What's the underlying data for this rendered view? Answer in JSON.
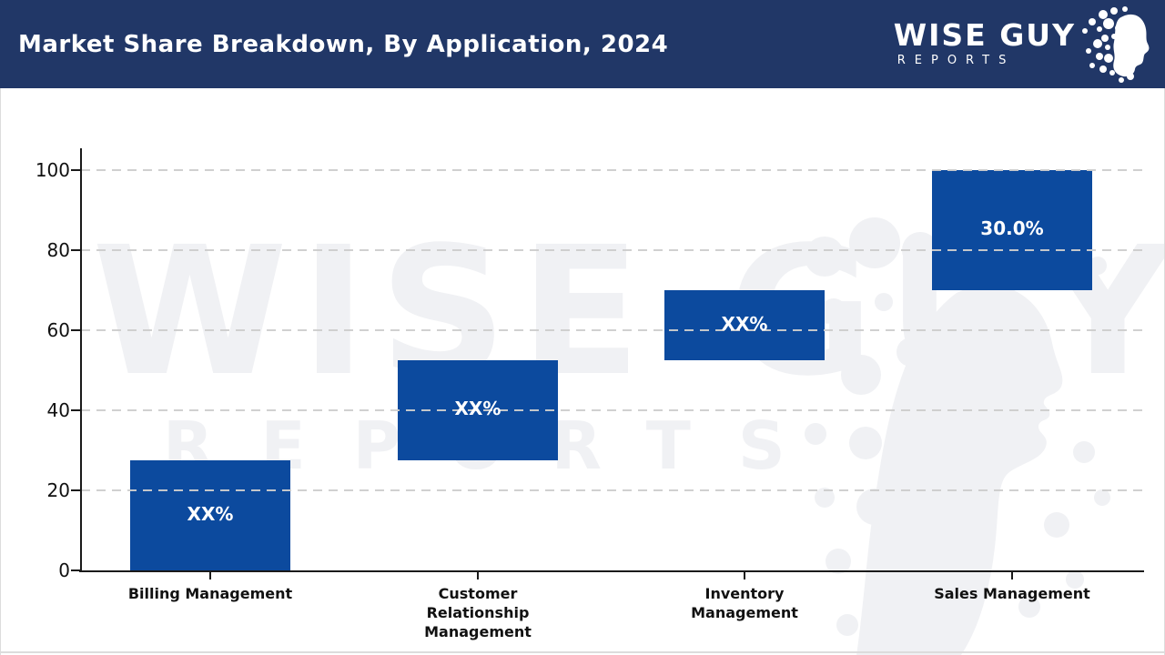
{
  "header": {
    "title": "Market Share Breakdown, By Application, 2024",
    "logo": {
      "name": "WISE GUY",
      "sub": "REPORTS"
    }
  },
  "watermark": {
    "line1": "WISE GUY",
    "line2": "REPORTS"
  },
  "colors": {
    "header_bg": "#213767",
    "bar": "#0c4a9e",
    "grid": "#cdcdcd",
    "watermark": "#f0f1f4"
  },
  "chart_data": {
    "type": "bar",
    "subtype": "waterfall",
    "title": "Market Share Breakdown, By Application, 2024",
    "xlabel": "",
    "ylabel": "",
    "ylim": [
      0,
      100
    ],
    "yticks": [
      0,
      20,
      40,
      60,
      80,
      100
    ],
    "grid": {
      "axis": "y",
      "style": "dashed"
    },
    "legend": "none",
    "categories": [
      "Billing Management",
      "Customer Relationship Management",
      "Inventory Management",
      "Sales Management"
    ],
    "bars": [
      {
        "category": "Billing Management",
        "category_lines": [
          "Billing Management"
        ],
        "start": 0,
        "end": 27.5,
        "value": 27.5,
        "value_label": "XX%"
      },
      {
        "category": "Customer Relationship Management",
        "category_lines": [
          "Customer",
          "Relationship",
          "Management"
        ],
        "start": 27.5,
        "end": 52.5,
        "value": 25,
        "value_label": "XX%"
      },
      {
        "category": "Inventory Management",
        "category_lines": [
          "Inventory",
          "Management"
        ],
        "start": 52.5,
        "end": 70,
        "value": 17.5,
        "value_label": "XX%"
      },
      {
        "category": "Sales Management",
        "category_lines": [
          "Sales Management"
        ],
        "start": 70,
        "end": 100,
        "value": 30,
        "value_label": "30.0%"
      }
    ]
  }
}
